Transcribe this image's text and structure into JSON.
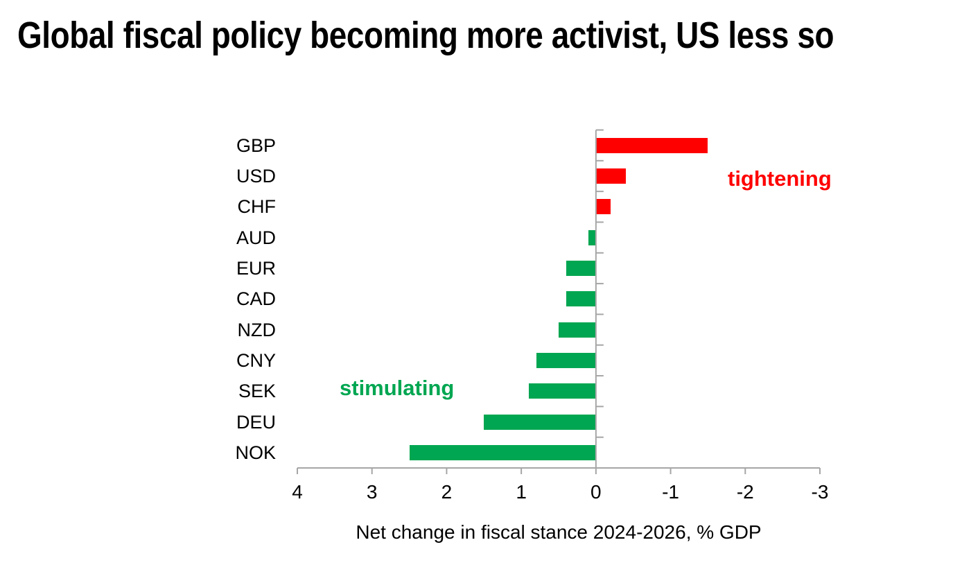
{
  "chart_data": {
    "type": "bar",
    "orientation": "horizontal",
    "title": "Global fiscal policy becoming more activist, US less so",
    "xlabel": "Net change in fiscal stance 2024-2026, % GDP",
    "categories": [
      "GBP",
      "USD",
      "CHF",
      "AUD",
      "EUR",
      "CAD",
      "NZD",
      "CNY",
      "SEK",
      "DEU",
      "NOK"
    ],
    "values": [
      -1.5,
      -0.4,
      -0.2,
      0.1,
      0.4,
      0.4,
      0.5,
      0.8,
      0.9,
      1.5,
      2.5
    ],
    "x_ticks": [
      4,
      3,
      2,
      1,
      0,
      -1,
      -2,
      -3
    ],
    "xlim": [
      4,
      -3
    ],
    "x_axis_reversed": true,
    "grid": false,
    "legend": false,
    "colors": {
      "positive": "#00A651",
      "negative": "#FF0000",
      "axis": "#A6A6A6",
      "text": "#000000"
    },
    "annotations": [
      {
        "text": "tightening",
        "color": "#FF0000",
        "side": "tightening"
      },
      {
        "text": "stimulating",
        "color": "#00A651",
        "side": "stimulating"
      }
    ]
  }
}
